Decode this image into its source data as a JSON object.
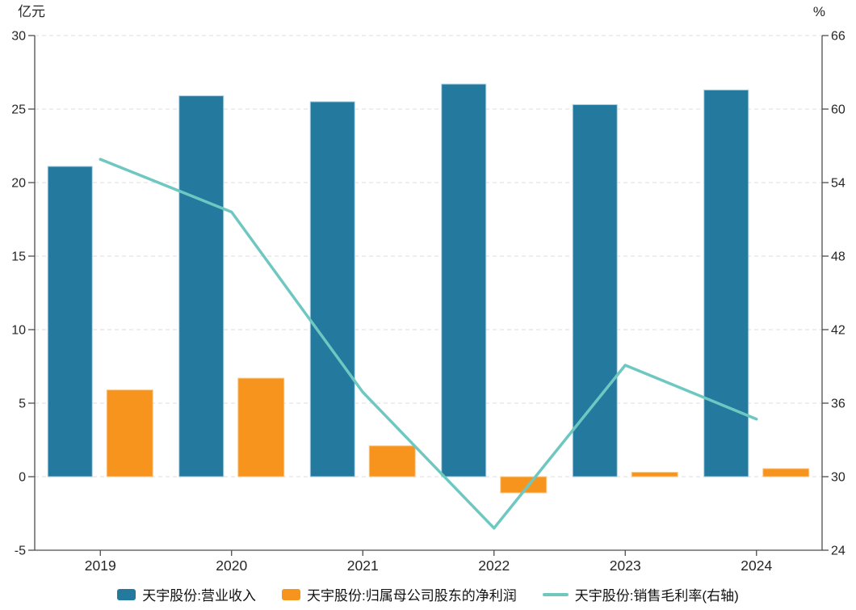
{
  "chart_data": {
    "type": "combo",
    "title": "",
    "categories": [
      "2019",
      "2020",
      "2021",
      "2022",
      "2023",
      "2024"
    ],
    "series": [
      {
        "name": "天宇股份:营业收入",
        "type": "bar",
        "axis": "left",
        "color": "#23799e",
        "edge_color": "#a9cfe2",
        "values": [
          21.1,
          25.9,
          25.5,
          26.7,
          25.3,
          26.3
        ]
      },
      {
        "name": "天宇股份:归属母公司股东的净利润",
        "type": "bar",
        "axis": "left",
        "color": "#f6941e",
        "edge_color": "#fbca8e",
        "values": [
          5.9,
          6.7,
          2.1,
          -1.1,
          0.3,
          0.55
        ]
      },
      {
        "name": "天宇股份:销售毛利率(右轴)",
        "type": "line",
        "axis": "right",
        "color": "#6ec8c1",
        "values": [
          55.9,
          51.6,
          36.9,
          25.8,
          39.1,
          34.7
        ]
      }
    ],
    "left_axis": {
      "unit": "亿元",
      "min": -5,
      "max": 30,
      "ticks": [
        30,
        25,
        20,
        15,
        10,
        5,
        0,
        -5
      ]
    },
    "right_axis": {
      "unit": "%",
      "min": 24,
      "max": 66,
      "ticks": [
        66,
        60,
        54,
        48,
        42,
        36,
        30,
        24
      ]
    },
    "grid": "dashed horizontal",
    "legend_position": "bottom",
    "xlabel": "",
    "ylabel_left": "亿元",
    "ylabel_right": "%"
  },
  "style": {
    "axis_color": "#4d4d4d",
    "grid_color": "#dcdcdc",
    "tick_label_color": "#262626",
    "background": "#ffffff"
  }
}
